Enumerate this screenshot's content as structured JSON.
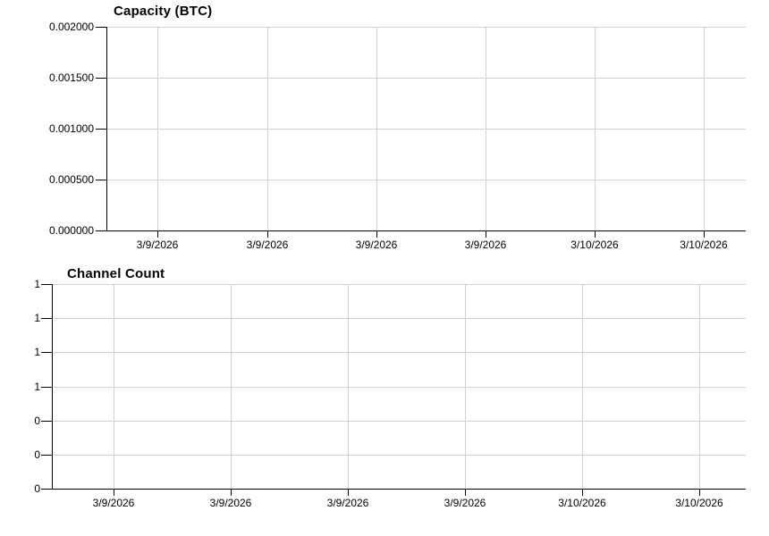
{
  "colors": {
    "background": "#ffffff",
    "grid": "#d0d0d0",
    "axis": "#000000",
    "text": "#000000"
  },
  "chart_data": [
    {
      "type": "line",
      "title": "Capacity (BTC)",
      "xlabel": "",
      "ylabel": "",
      "ylim": [
        0.0,
        0.002
      ],
      "grid": true,
      "legend": false,
      "x_tick_labels": [
        "3/9/2026",
        "3/9/2026",
        "3/9/2026",
        "3/9/2026",
        "3/10/2026",
        "3/10/2026"
      ],
      "y_tick_labels": [
        "0.002000",
        "0.001500",
        "0.001000",
        "0.000500",
        "0.000000"
      ],
      "series": []
    },
    {
      "type": "line",
      "title": "Channel Count",
      "xlabel": "",
      "ylabel": "",
      "ylim": [
        0,
        1
      ],
      "grid": true,
      "legend": false,
      "x_tick_labels": [
        "3/9/2026",
        "3/9/2026",
        "3/9/2026",
        "3/9/2026",
        "3/10/2026",
        "3/10/2026"
      ],
      "y_tick_labels": [
        "1",
        "1",
        "1",
        "1",
        "0",
        "0",
        "0"
      ],
      "series": []
    }
  ]
}
